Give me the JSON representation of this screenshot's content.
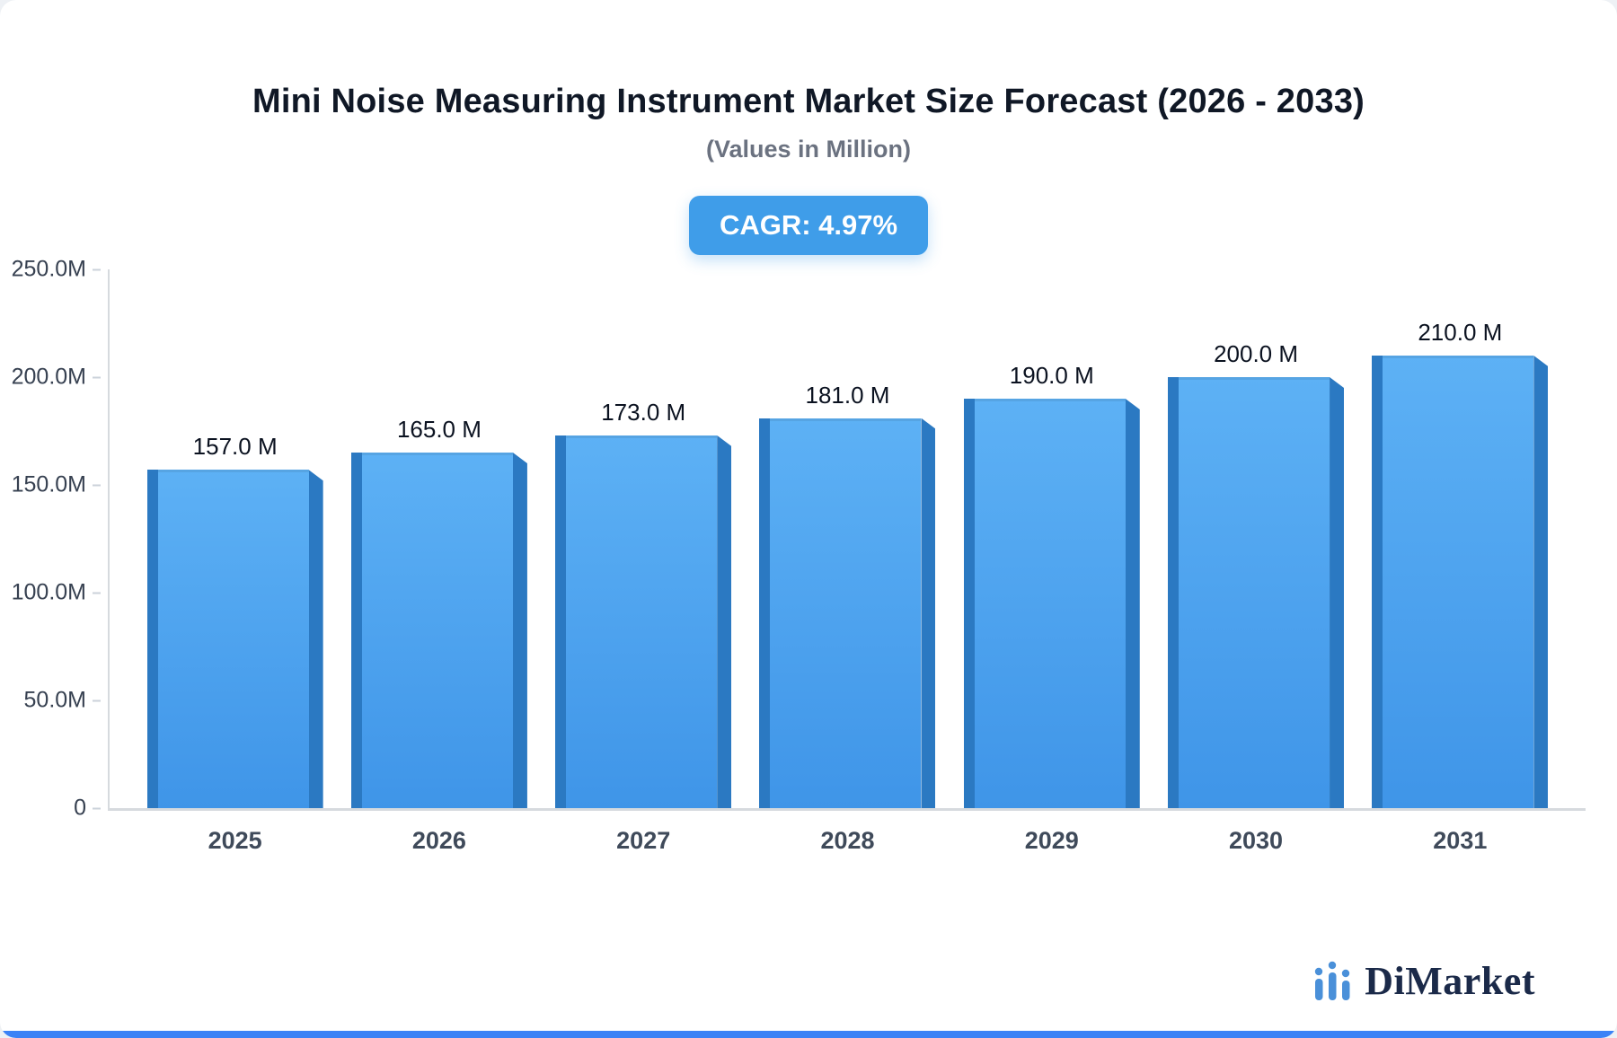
{
  "title": "Mini Noise Measuring Instrument Market Size Forecast (2026 - 2033)",
  "subtitle": "(Values in Million)",
  "cagr_badge": "CAGR: 4.97%",
  "brand": {
    "name": "DiMarket",
    "icon": "dimarket-bars-icon"
  },
  "colors": {
    "badge_bg": "#3f9de9",
    "bar_face_top": "#5db1f5",
    "bar_face_bottom": "#3f95e8",
    "bar_side": "#2b79c2",
    "axis_line": "#d6dade",
    "bottom_strip": "#3b82f6",
    "logo_navy": "#1b2a49",
    "logo_blue": "#4a90d9"
  },
  "chart_data": {
    "type": "bar",
    "title": "Mini Noise Measuring Instrument Market Size Forecast (2026 - 2033)",
    "subtitle": "(Values in Million)",
    "categories": [
      "2025",
      "2026",
      "2027",
      "2028",
      "2029",
      "2030",
      "2031"
    ],
    "values": [
      157.0,
      165.0,
      173.0,
      181.0,
      190.0,
      200.0,
      210.0
    ],
    "value_labels": [
      "157.0 M",
      "165.0 M",
      "173.0 M",
      "181.0 M",
      "190.0 M",
      "200.0 M",
      "210.0 M"
    ],
    "xlabel": "",
    "ylabel": "",
    "ylim": [
      0,
      250
    ],
    "yticks": [
      {
        "value": 250,
        "label": "250.0M"
      },
      {
        "value": 200,
        "label": "200.0M"
      },
      {
        "value": 150,
        "label": "150.0M"
      },
      {
        "value": 100,
        "label": "100.0M"
      },
      {
        "value": 50,
        "label": "50.0M"
      },
      {
        "value": 0,
        "label": "0"
      }
    ],
    "grid": false,
    "legend": "none",
    "annotation": "CAGR: 4.97%"
  }
}
